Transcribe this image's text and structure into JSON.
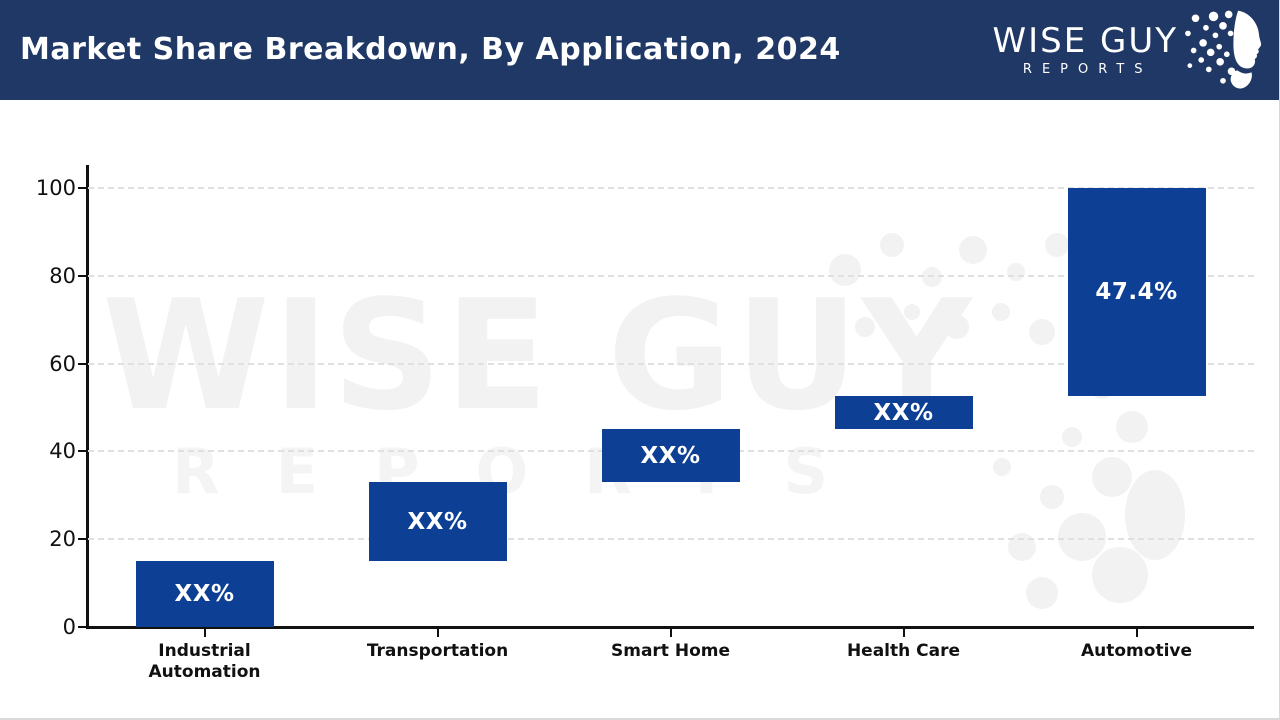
{
  "header": {
    "title": "Market Share Breakdown, By Application, 2024",
    "logo": {
      "line1": "WISE GUY",
      "line2": "REPORTS"
    }
  },
  "watermark": {
    "line1": "WISE GUY",
    "line2": "REPORTS"
  },
  "colors": {
    "header_bg": "#1f3865",
    "bar": "#0d3f94",
    "grid": "#e0e0e0",
    "axis": "#111111",
    "bar_label": "#ffffff",
    "watermark": "#f2f2f2"
  },
  "chart_data": {
    "type": "bar",
    "subtype": "floating-waterfall",
    "title": "Market Share Breakdown, By Application, 2024",
    "xlabel": "",
    "ylabel": "",
    "ylim": [
      0,
      105
    ],
    "yticks": [
      0,
      20,
      40,
      60,
      80,
      100
    ],
    "grid": "horizontal dashed",
    "legend": "none",
    "categories": [
      "Industrial Automation",
      "Transportation",
      "Smart Home",
      "Health Care",
      "Automotive"
    ],
    "segments": [
      {
        "category": "Industrial Automation",
        "lines": [
          "Industrial",
          "Automation"
        ],
        "start": 0,
        "end": 15,
        "value": 15,
        "label": "XX%"
      },
      {
        "category": "Transportation",
        "lines": [
          "Transportation"
        ],
        "start": 15,
        "end": 33,
        "value": 18,
        "label": "XX%"
      },
      {
        "category": "Smart Home",
        "lines": [
          "Smart Home"
        ],
        "start": 33,
        "end": 45,
        "value": 12,
        "label": "XX%"
      },
      {
        "category": "Health Care",
        "lines": [
          "Health Care"
        ],
        "start": 45,
        "end": 52.6,
        "value": 7.6,
        "label": "XX%"
      },
      {
        "category": "Automotive",
        "lines": [
          "Automotive"
        ],
        "start": 52.6,
        "end": 100,
        "value": 47.4,
        "label": "47.4%"
      }
    ]
  }
}
